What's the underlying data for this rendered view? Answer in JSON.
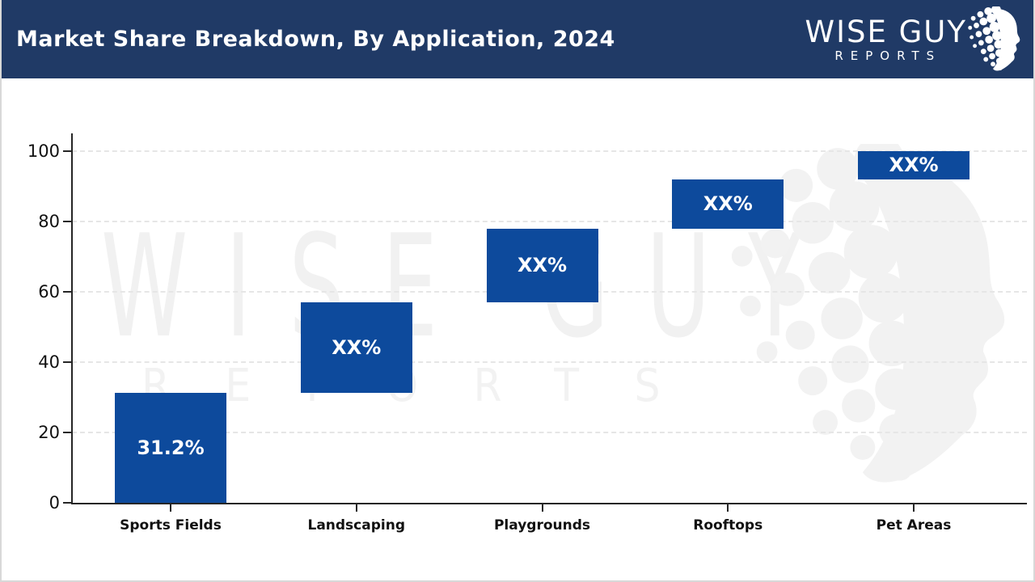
{
  "header": {
    "title": "Market Share Breakdown, By Application, 2024",
    "bg_color": "#203a66",
    "logo": {
      "wordmark": "WISE GUY",
      "subtext": "REPORTS"
    }
  },
  "watermark": {
    "line1": "WISE GUY",
    "line2": "REPORTS"
  },
  "chart_data": {
    "type": "bar",
    "subtype": "waterfall",
    "title": "Market Share Breakdown, By Application, 2024",
    "categories": [
      "Sports Fields",
      "Landscaping",
      "Playgrounds",
      "Rooftops",
      "Pet Areas"
    ],
    "segments": [
      {
        "category": "Sports Fields",
        "start": 0,
        "end": 31.2,
        "label": "31.2%"
      },
      {
        "category": "Landscaping",
        "start": 31.2,
        "end": 57,
        "label": "XX%"
      },
      {
        "category": "Playgrounds",
        "start": 57,
        "end": 78,
        "label": "XX%"
      },
      {
        "category": "Rooftops",
        "start": 78,
        "end": 92,
        "label": "XX%"
      },
      {
        "category": "Pet Areas",
        "start": 92,
        "end": 100,
        "label": "XX%"
      }
    ],
    "y_ticks": [
      0,
      20,
      40,
      60,
      80,
      100
    ],
    "ylim": [
      0,
      105
    ],
    "xlabel": "",
    "ylabel": "",
    "grid": "horizontal-dashed",
    "legend": "none",
    "bar_color": "#0d4a9c",
    "bar_label_color": "#ffffff",
    "axis_color": "#262626"
  }
}
